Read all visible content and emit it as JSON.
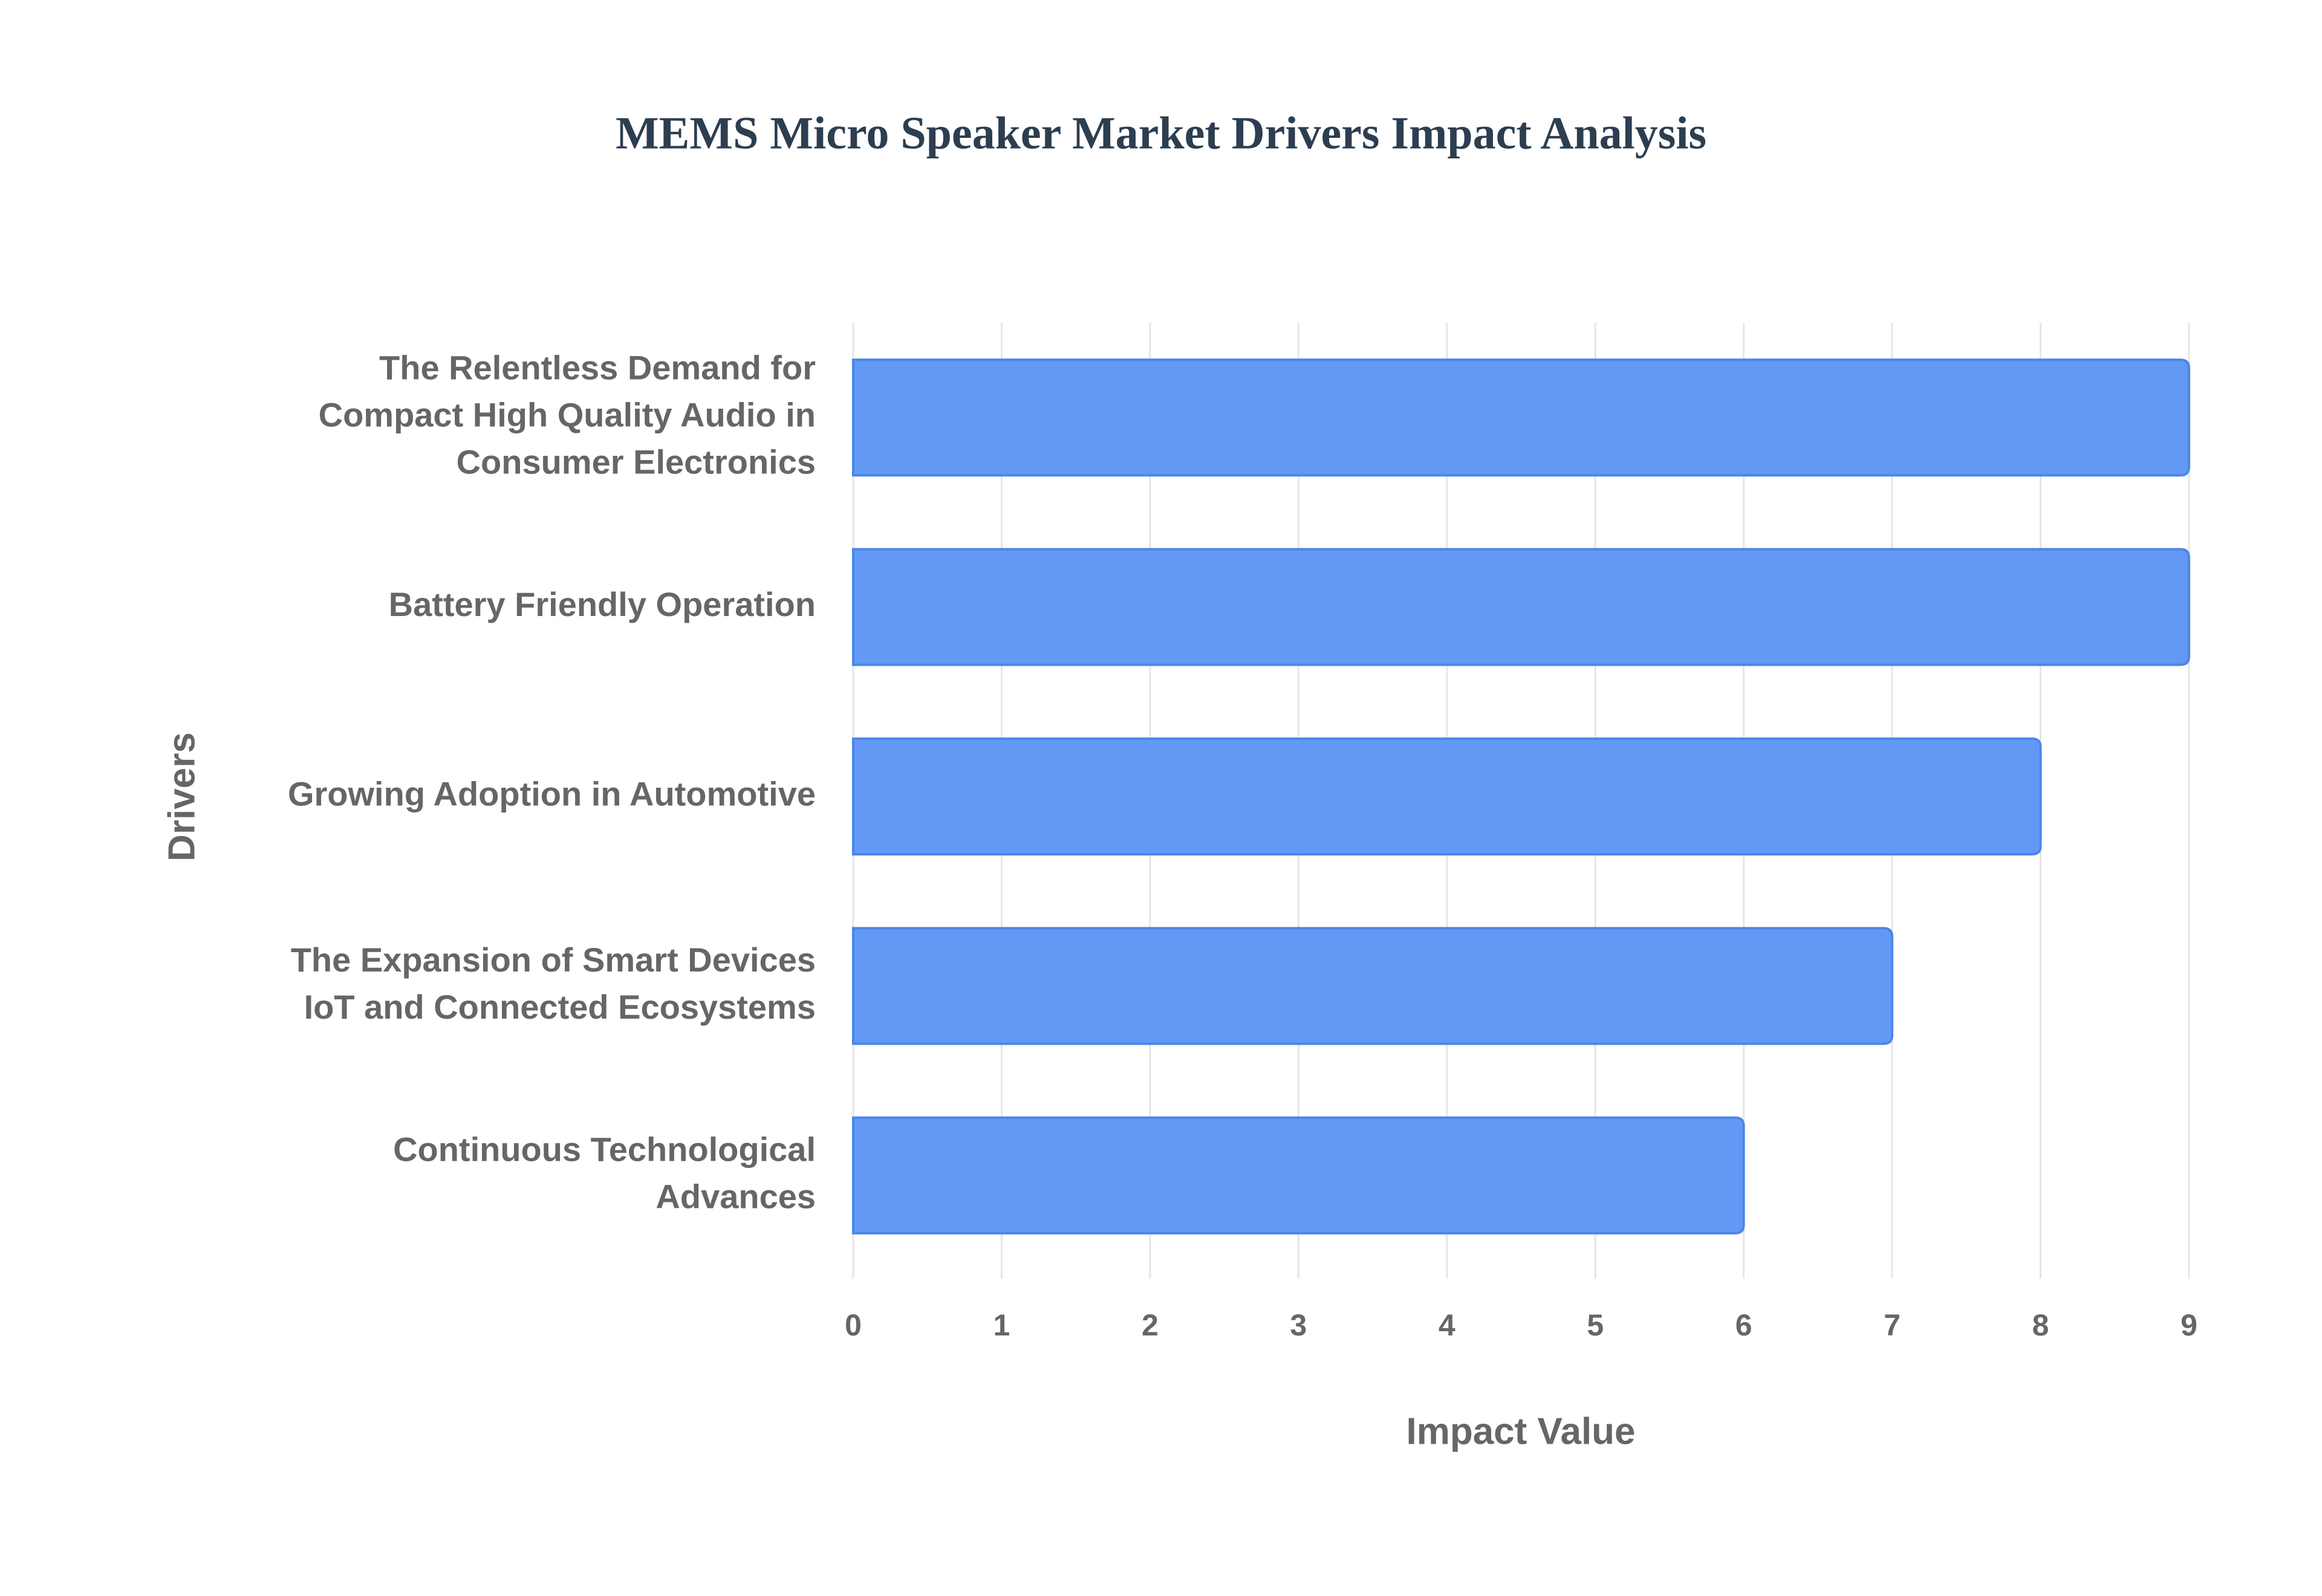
{
  "chart_data": {
    "type": "bar",
    "orientation": "horizontal",
    "title": "MEMS Micro Speaker Market Drivers Impact Analysis",
    "x_label": "Impact Value",
    "y_label": "Drivers",
    "categories": [
      "The Relentless Demand for Compact High Quality Audio in Consumer Electronics",
      "Battery Friendly Operation",
      "Growing Adoption in Automotive",
      "The Expansion of Smart Devices IoT and Connected Ecosystems",
      "Continuous Technological Advances"
    ],
    "values": [
      9,
      9,
      8,
      7,
      6
    ],
    "color": "#6399f5",
    "xlim": [
      0,
      9
    ],
    "xticks": [
      0,
      1,
      2,
      3,
      4,
      5,
      6,
      7,
      8,
      9
    ],
    "grid": true
  }
}
